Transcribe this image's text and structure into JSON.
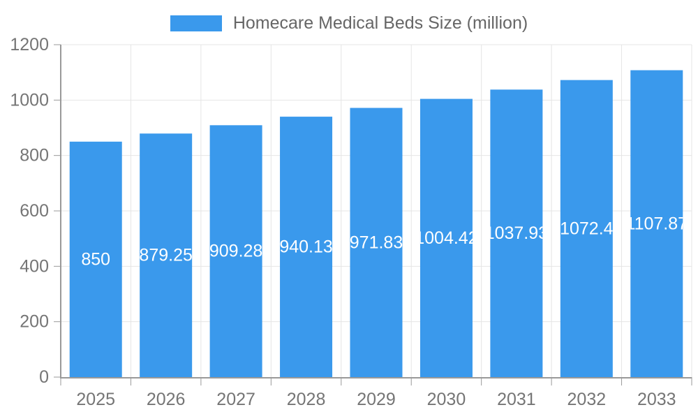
{
  "legend": {
    "label": "Homecare Medical Beds Size (million)"
  },
  "colors": {
    "bar": "#3A99EC",
    "axis": "#999999",
    "grid": "#E5E5E5",
    "tick_label": "#757575",
    "legend_label": "#666666",
    "bar_label": "#FFFFFF",
    "background": "#FFFFFF"
  },
  "chart_data": {
    "type": "bar",
    "title": "",
    "legend": "Homecare Medical Beds Size (million)",
    "categories": [
      "2025",
      "2026",
      "2027",
      "2028",
      "2029",
      "2030",
      "2031",
      "2032",
      "2033"
    ],
    "values": [
      850,
      879.25,
      909.28,
      940.13,
      971.83,
      1004.42,
      1037.93,
      1072.4,
      1107.87
    ],
    "value_labels": [
      "850",
      "879.25",
      "909.28",
      "940.13",
      "971.83",
      "1004.42",
      "1037.93",
      "1072.4",
      "1107.87"
    ],
    "xlabel": "",
    "ylabel": "",
    "ylim": [
      0,
      1200
    ],
    "yticks": [
      0,
      200,
      400,
      600,
      800,
      1000,
      1200
    ],
    "ytick_labels": [
      "0",
      "200",
      "400",
      "600",
      "800",
      "1000",
      "1200"
    ],
    "grid": true,
    "legend_position": "top-center",
    "bar_label_position": "inside-center"
  }
}
